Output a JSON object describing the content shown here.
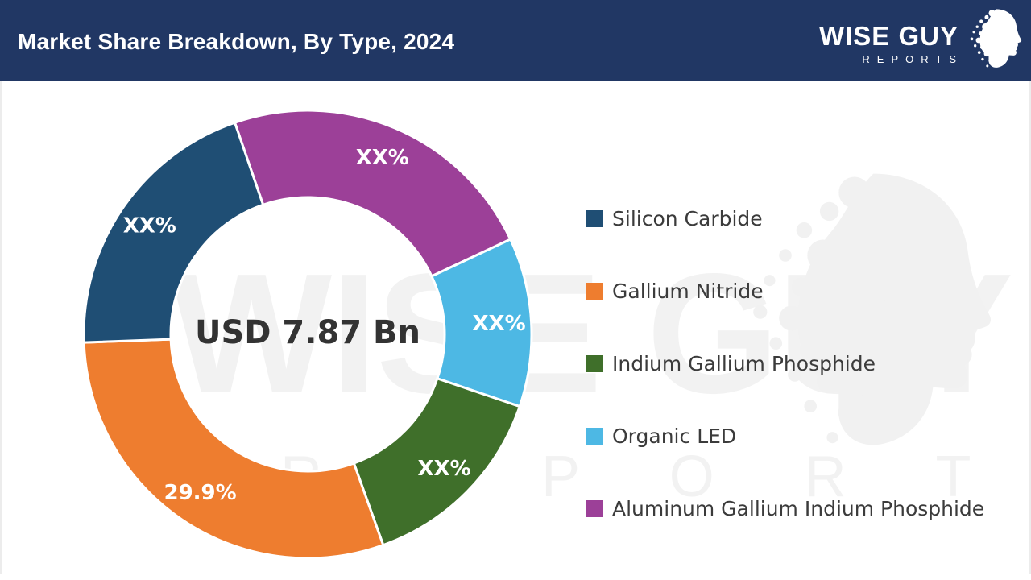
{
  "header": {
    "title": "Market Share Breakdown, By Type, 2024",
    "brand": {
      "line1": "WISE GUY",
      "line2": "REPORTS"
    }
  },
  "watermark": {
    "line1": "WISE GUY",
    "line2": "REPORTS"
  },
  "chart_data": {
    "type": "pie",
    "variant": "donut",
    "title": "Market Share Breakdown, By Type, 2024",
    "center_label": "USD 7.87 Bn",
    "legend_position": "right",
    "start_angle_deg_clockwise_from_north": -19,
    "outer_radius": 278,
    "inner_radius": 170,
    "label_radius": 238,
    "draw_order": [
      4,
      3,
      2,
      1,
      0
    ],
    "segments": [
      {
        "label": "Silicon Carbide",
        "value": 20.3,
        "display": "XX%",
        "color": "#1F4E74"
      },
      {
        "label": "Gallium Nitride",
        "value": 29.9,
        "display": "29.9%",
        "color": "#EE7D2F"
      },
      {
        "label": "Indium Gallium Phosphide",
        "value": 14.3,
        "display": "XX%",
        "color": "#3F6F2A"
      },
      {
        "label": "Organic LED",
        "value": 12.2,
        "display": "XX%",
        "color": "#4DB8E4"
      },
      {
        "label": "Aluminum Gallium Indium Phosphide",
        "value": 23.3,
        "display": "XX%",
        "color": "#9C4098"
      }
    ]
  }
}
